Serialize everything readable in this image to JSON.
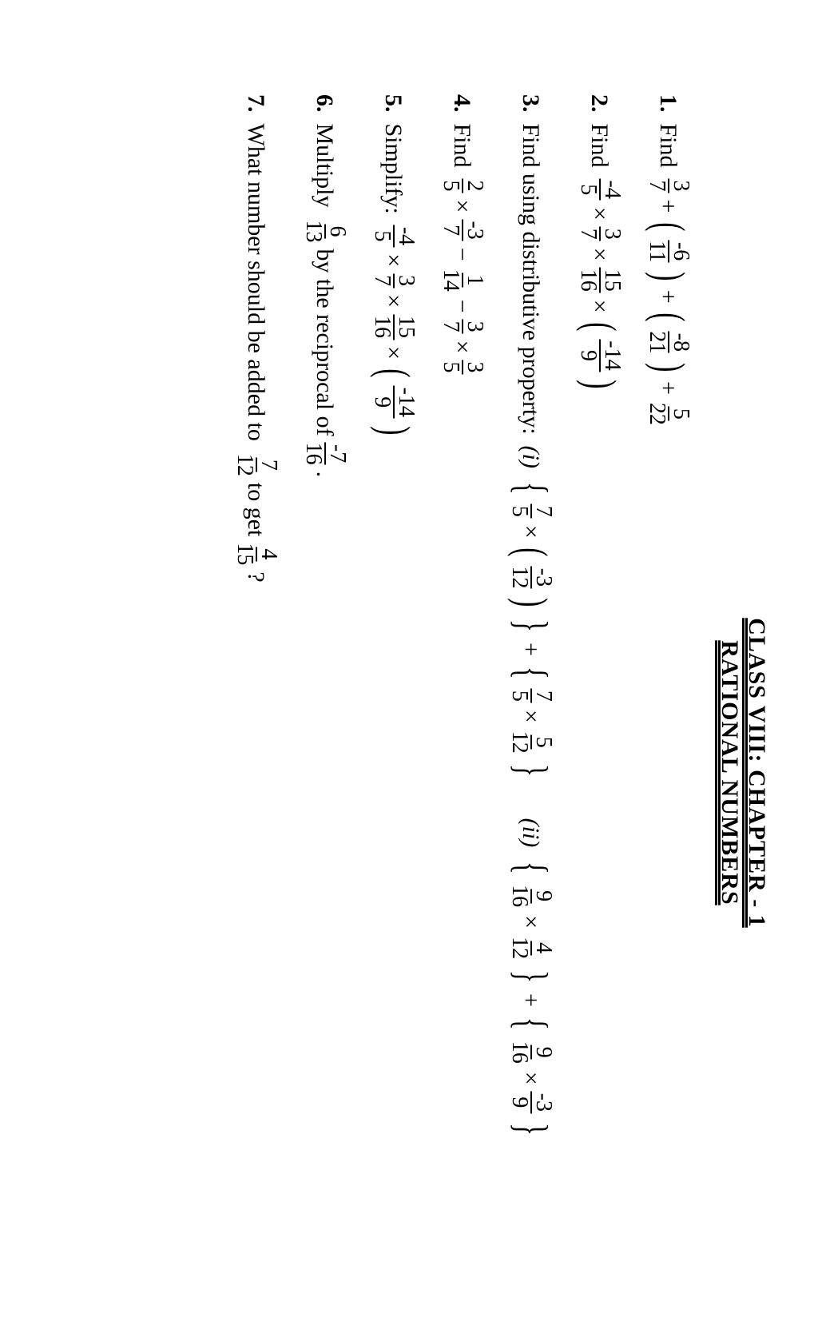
{
  "titles": {
    "line1": "CLASS VIII: CHAPTER - 1",
    "line2": "RATIONAL NUMBERS"
  },
  "questions": [
    {
      "num": "1.",
      "verb": "Find",
      "expr": "frac:3/7 op:+ ( frac:-6/11 ) op:+ ( frac:-8/21 ) op:+ frac:5/22"
    },
    {
      "num": "2.",
      "verb": "Find",
      "expr": "frac:-4/5 op:× frac:3/7 op:× frac:15/16 op:× ( frac:-14/9 )"
    },
    {
      "num": "3.",
      "verb": "Find using distributive property:",
      "expr": "sub:(i) { frac:7/5 op:× ( frac:-3/12 ) } op:+ { frac:7/5 op:× frac:5/12 } gap sub:(ii) { frac:9/16 op:× frac:4/12 } op:+ { frac:9/16 op:× frac:-3/9 }"
    },
    {
      "num": "4.",
      "verb": "Find",
      "expr": "frac:2/5 op:× frac:-3/7 op:− frac:1/14 op:− frac:3/7 op:× frac:3/5"
    },
    {
      "num": "5.",
      "verb": "Simplify:",
      "expr": "frac:-4/5 op:× frac:3/7 op:× frac:15/16 op:× ( frac:-14/9 )"
    },
    {
      "num": "6.",
      "verb": "Multiply",
      "expr": "frac:6/13 txt:by the reciprocal of frac:-7/16 txt:."
    },
    {
      "num": "7.",
      "verb": "What number should be added to",
      "expr": "frac:7/12 txt:to get frac:4/15 txt:?"
    }
  ]
}
